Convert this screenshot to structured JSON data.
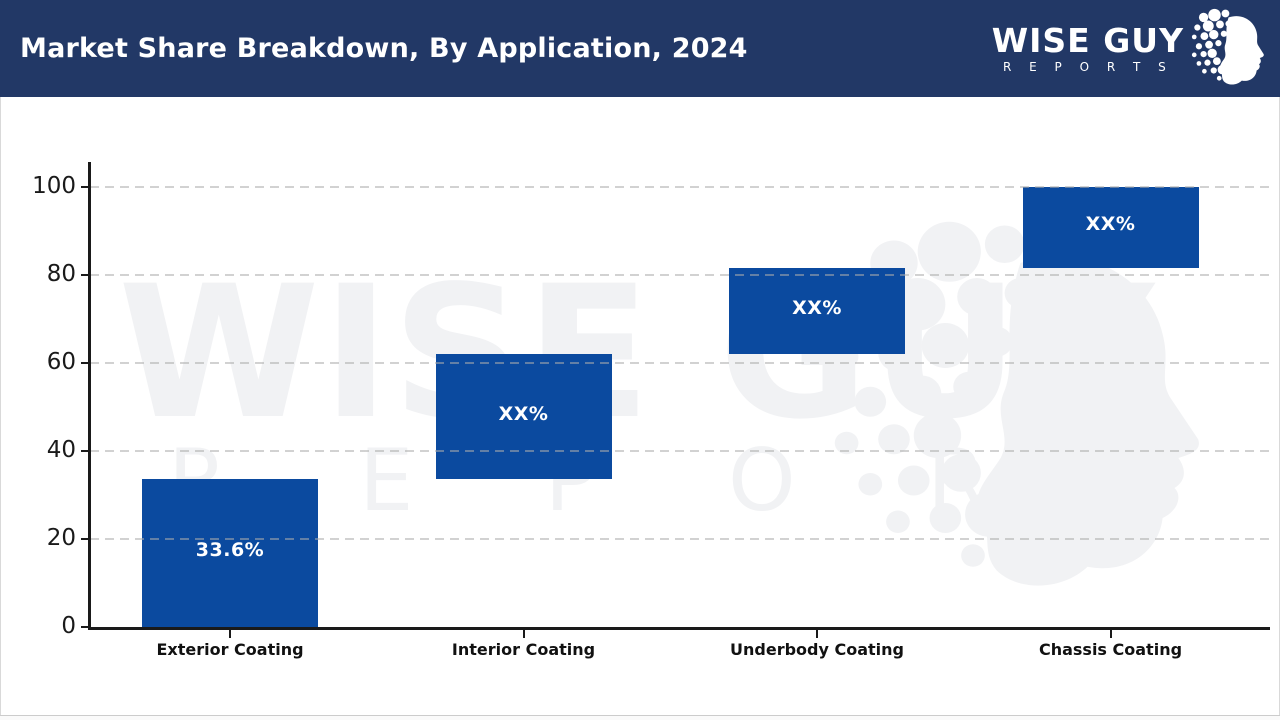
{
  "header": {
    "title": "Market Share Breakdown, By Application, 2024",
    "bg_color": "#223866",
    "logo": {
      "line1": "WISE GUY",
      "line2": "R E P O R T S"
    }
  },
  "watermark": {
    "line1": "WISE GUY",
    "line2": "R E P O R T S"
  },
  "chart_data": {
    "type": "bar",
    "subtype": "waterfall",
    "title": "Market Share Breakdown, By Application, 2024",
    "categories": [
      "Exterior Coating",
      "Interior Coating",
      "Underbody Coating",
      "Chassis Coating"
    ],
    "segments": [
      {
        "category": "Exterior Coating",
        "start": 0,
        "end": 33.6,
        "label": "33.6%"
      },
      {
        "category": "Interior Coating",
        "start": 33.6,
        "end": 62.0,
        "label": "XX%"
      },
      {
        "category": "Underbody Coating",
        "start": 62.0,
        "end": 81.6,
        "label": "XX%"
      },
      {
        "category": "Chassis Coating",
        "start": 81.6,
        "end": 100.0,
        "label": "XX%"
      }
    ],
    "ylim": [
      0,
      100
    ],
    "yticks": [
      0,
      20,
      40,
      60,
      80,
      100
    ],
    "grid": "horizontal-dashed",
    "legend": "none",
    "bar_color": "#0b4a9f",
    "bar_label_color": "#ffffff",
    "axis_color": "#1a1a1a"
  }
}
